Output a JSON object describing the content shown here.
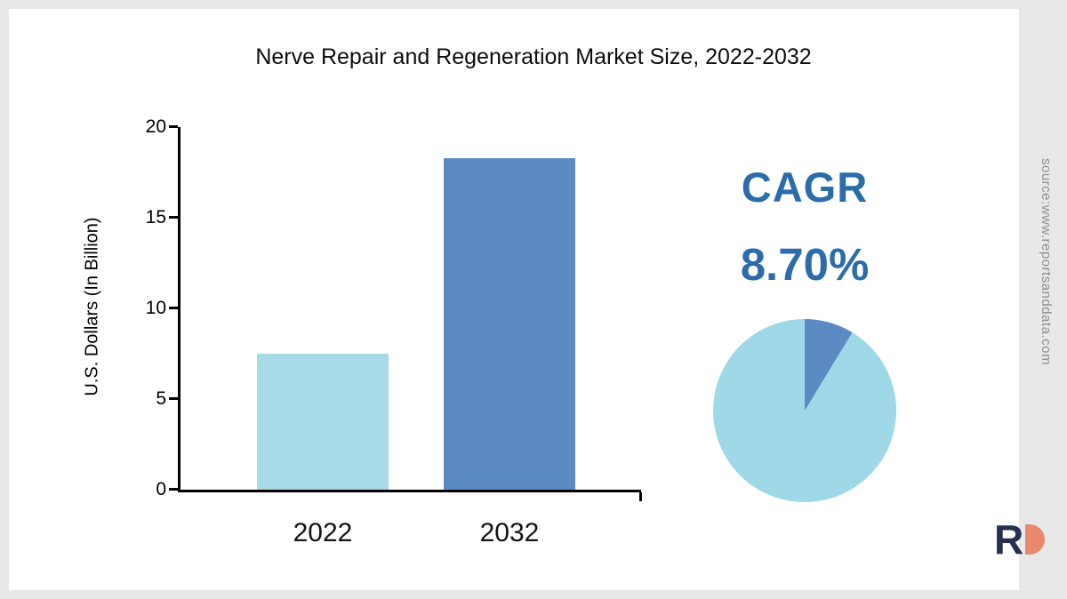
{
  "chart_data": [
    {
      "type": "bar",
      "title": "Nerve Repair and Regeneration Market Size, 2022-2032",
      "categories": [
        "2022",
        "2032"
      ],
      "values": [
        7.5,
        18.3
      ],
      "bar_colors": [
        "#a7dae7",
        "#5c8bc4"
      ],
      "xlabel": "",
      "ylabel": "U.S. Dollars (In Billion)",
      "ylim": [
        0,
        20
      ],
      "yticks": [
        0,
        5,
        10,
        15,
        20
      ],
      "grid": false,
      "legend": "none"
    },
    {
      "type": "pie",
      "values": [
        8.7,
        91.3
      ],
      "slice_colors": [
        "#5c8bc4",
        "#9fd8e6"
      ],
      "start_angle_deg": 0,
      "note": "pie visualizes CAGR share 8.70%"
    }
  ],
  "cagr": {
    "label": "CAGR",
    "value": "8.70%",
    "color": "#2b6ca9"
  },
  "source": "source:www.reportsanddata.com",
  "logo": {
    "letter": "R",
    "letter_color": "#27304e",
    "accent_color": "#e98a70"
  }
}
